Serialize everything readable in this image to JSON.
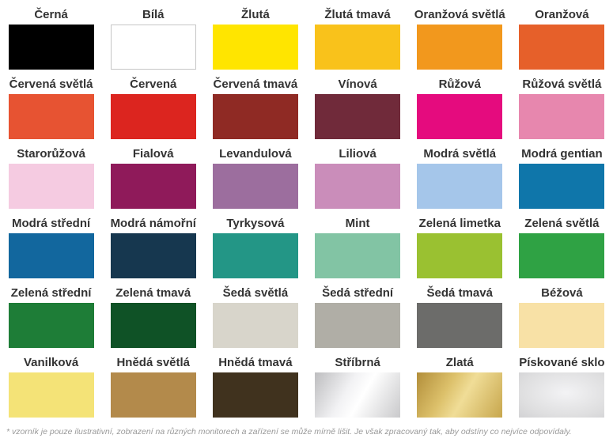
{
  "page": {
    "background": "#ffffff",
    "label_color": "#333333"
  },
  "swatches": [
    {
      "label": "Černá",
      "color": "#000000"
    },
    {
      "label": "Bílá",
      "color": "#ffffff",
      "border": "#c6c6c6"
    },
    {
      "label": "Žlutá",
      "color": "#ffe500"
    },
    {
      "label": "Žlutá tmavá",
      "color": "#f9c21b"
    },
    {
      "label": "Oranžová světlá",
      "color": "#f2981d"
    },
    {
      "label": "Oranžová",
      "color": "#e6602a"
    },
    {
      "label": "Červená světlá",
      "color": "#e75332"
    },
    {
      "label": "Červená",
      "color": "#dc251f"
    },
    {
      "label": "Červená tmavá",
      "color": "#8f2a24"
    },
    {
      "label": "Vínová",
      "color": "#702a3a"
    },
    {
      "label": "Růžová",
      "color": "#e50b7e"
    },
    {
      "label": "Růžová světlá",
      "color": "#e787ae"
    },
    {
      "label": "Starorůžová",
      "color": "#f5cbe1"
    },
    {
      "label": "Fialová",
      "color": "#8f1a5a"
    },
    {
      "label": "Levandulová",
      "color": "#9c6e9e"
    },
    {
      "label": "Liliová",
      "color": "#ca8dba"
    },
    {
      "label": "Modrá světlá",
      "color": "#a5c6ea"
    },
    {
      "label": "Modrá gentian",
      "color": "#0f76aa"
    },
    {
      "label": "Modrá střední",
      "color": "#12679e"
    },
    {
      "label": "Modrá námořní",
      "color": "#16374f"
    },
    {
      "label": "Tyrkysová",
      "color": "#239686"
    },
    {
      "label": "Mint",
      "color": "#82c4a4"
    },
    {
      "label": "Zelená limetka",
      "color": "#9ac131"
    },
    {
      "label": "Zelená světlá",
      "color": "#2fa244"
    },
    {
      "label": "Zelená střední",
      "color": "#1e7d37"
    },
    {
      "label": "Zelená tmavá",
      "color": "#0f5226"
    },
    {
      "label": "Šedá světlá",
      "color": "#d8d5cb"
    },
    {
      "label": "Šedá střední",
      "color": "#b0aea6"
    },
    {
      "label": "Šedá tmavá",
      "color": "#6c6c6a"
    },
    {
      "label": "Béžová",
      "color": "#f8e1a6"
    },
    {
      "label": "Vanilková",
      "color": "#f4e377"
    },
    {
      "label": "Hnědá světlá",
      "color": "#b38a4b"
    },
    {
      "label": "Hnědá tmavá",
      "color": "#40321e"
    },
    {
      "label": "Stříbrná",
      "gradient": {
        "type": "linear",
        "angle": "120deg",
        "stops": [
          "#bdbdbf",
          "#f2f2f4 38%",
          "#ffffff 55%",
          "#c9c9cb 100%"
        ]
      }
    },
    {
      "label": "Zlatá",
      "gradient": {
        "type": "linear",
        "angle": "120deg",
        "stops": [
          "#b28e3a",
          "#dcc06a 35%",
          "#f0dd97 55%",
          "#c7a64c 100%"
        ]
      }
    },
    {
      "label": "Pískované sklo",
      "gradient": {
        "type": "radial",
        "stops": [
          "#f3f3f5",
          "#dededf 70%",
          "#d2d2d4 100%"
        ]
      }
    }
  ],
  "footer": {
    "note": "* vzorník je pouze ilustrativní, zobrazení na různých monitorech a zařízení se může mírně lišit. Je však zpracovaný tak, aby odstíny co nejvíce odpovídaly."
  }
}
